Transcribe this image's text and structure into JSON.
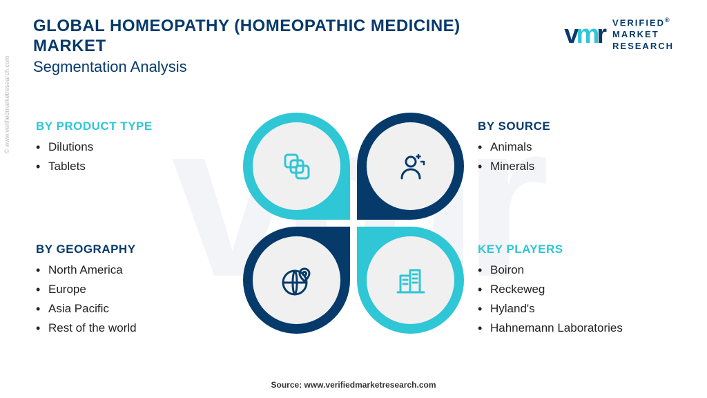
{
  "header": {
    "main_title": "GLOBAL HOMEOPATHY (HOMEOPATHIC MEDICINE) MARKET",
    "sub_title": "Segmentation Analysis",
    "logo_text_l1": "VERIFIED",
    "logo_text_l2": "MARKET",
    "logo_text_l3": "RESEARCH"
  },
  "colors": {
    "teal": "#2fc6d6",
    "navy": "#063a6b",
    "inner_bg": "#f0f0f0",
    "text": "#222222",
    "title_navy": "#063a6b"
  },
  "segments": {
    "tl": {
      "title": "BY PRODUCT TYPE",
      "title_color": "#2fc6d6",
      "ring_color": "#2fc6d6",
      "icon": "layers",
      "icon_color": "#2fc6d6",
      "items": [
        "Dilutions",
        "Tablets"
      ]
    },
    "tr": {
      "title": "BY SOURCE",
      "title_color": "#063a6b",
      "ring_color": "#063a6b",
      "icon": "person",
      "icon_color": "#063a6b",
      "items": [
        "Animals",
        "Minerals"
      ]
    },
    "bl": {
      "title": "BY GEOGRAPHY",
      "title_color": "#063a6b",
      "ring_color": "#063a6b",
      "icon": "globe",
      "icon_color": "#063a6b",
      "items": [
        "North America",
        "Europe",
        "Asia Pacific",
        "Rest of the world"
      ]
    },
    "br": {
      "title": "KEY PLAYERS",
      "title_color": "#2fc6d6",
      "ring_color": "#2fc6d6",
      "icon": "building",
      "icon_color": "#2fc6d6",
      "items": [
        "Boiron",
        "Reckeweg",
        "Hyland's",
        "Hahnemann Laboratories"
      ]
    }
  },
  "footer": "Source: www.verifiedmarketresearch.com",
  "side_credit": "© www.verifiedmarketresearch.com",
  "watermark": "vmr"
}
